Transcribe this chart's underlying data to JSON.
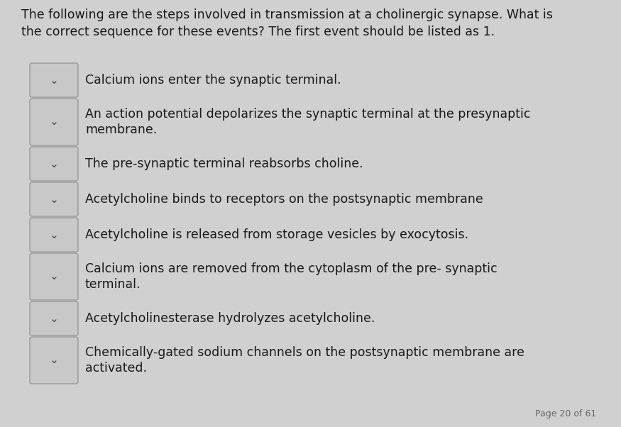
{
  "background_color": "#d0d0d0",
  "title_text": "The following are the steps involved in transmission at a cholinergic synapse. What is\nthe correct sequence for these events? The first event should be listed as 1.",
  "title_fontsize": 12.5,
  "title_color": "#1a1a1a",
  "items": [
    "Calcium ions enter the synaptic terminal.",
    "An action potential depolarizes the synaptic terminal at the presynaptic\nmembrane.",
    "The pre-synaptic terminal reabsorbs choline.",
    "Acetylcholine binds to receptors on the postsynaptic membrane",
    "Acetylcholine is released from storage vesicles by exocytosis.",
    "Calcium ions are removed from the cytoplasm of the pre- synaptic\nterminal.",
    "Acetylcholinesterase hydrolyzes acetylcholine.",
    "Chemically-gated sodium channels on the postsynaptic membrane are\nactivated."
  ],
  "item_lines": [
    1,
    2,
    1,
    1,
    1,
    2,
    1,
    2
  ],
  "item_fontsize": 12.5,
  "item_color": "#1a1a1a",
  "box_facecolor": "#c8c8c8",
  "box_edgecolor": "#999999",
  "footer_text": "Page 20 of 61",
  "footer_fontsize": 9,
  "footer_color": "#666666",
  "chevron_color": "#444444"
}
